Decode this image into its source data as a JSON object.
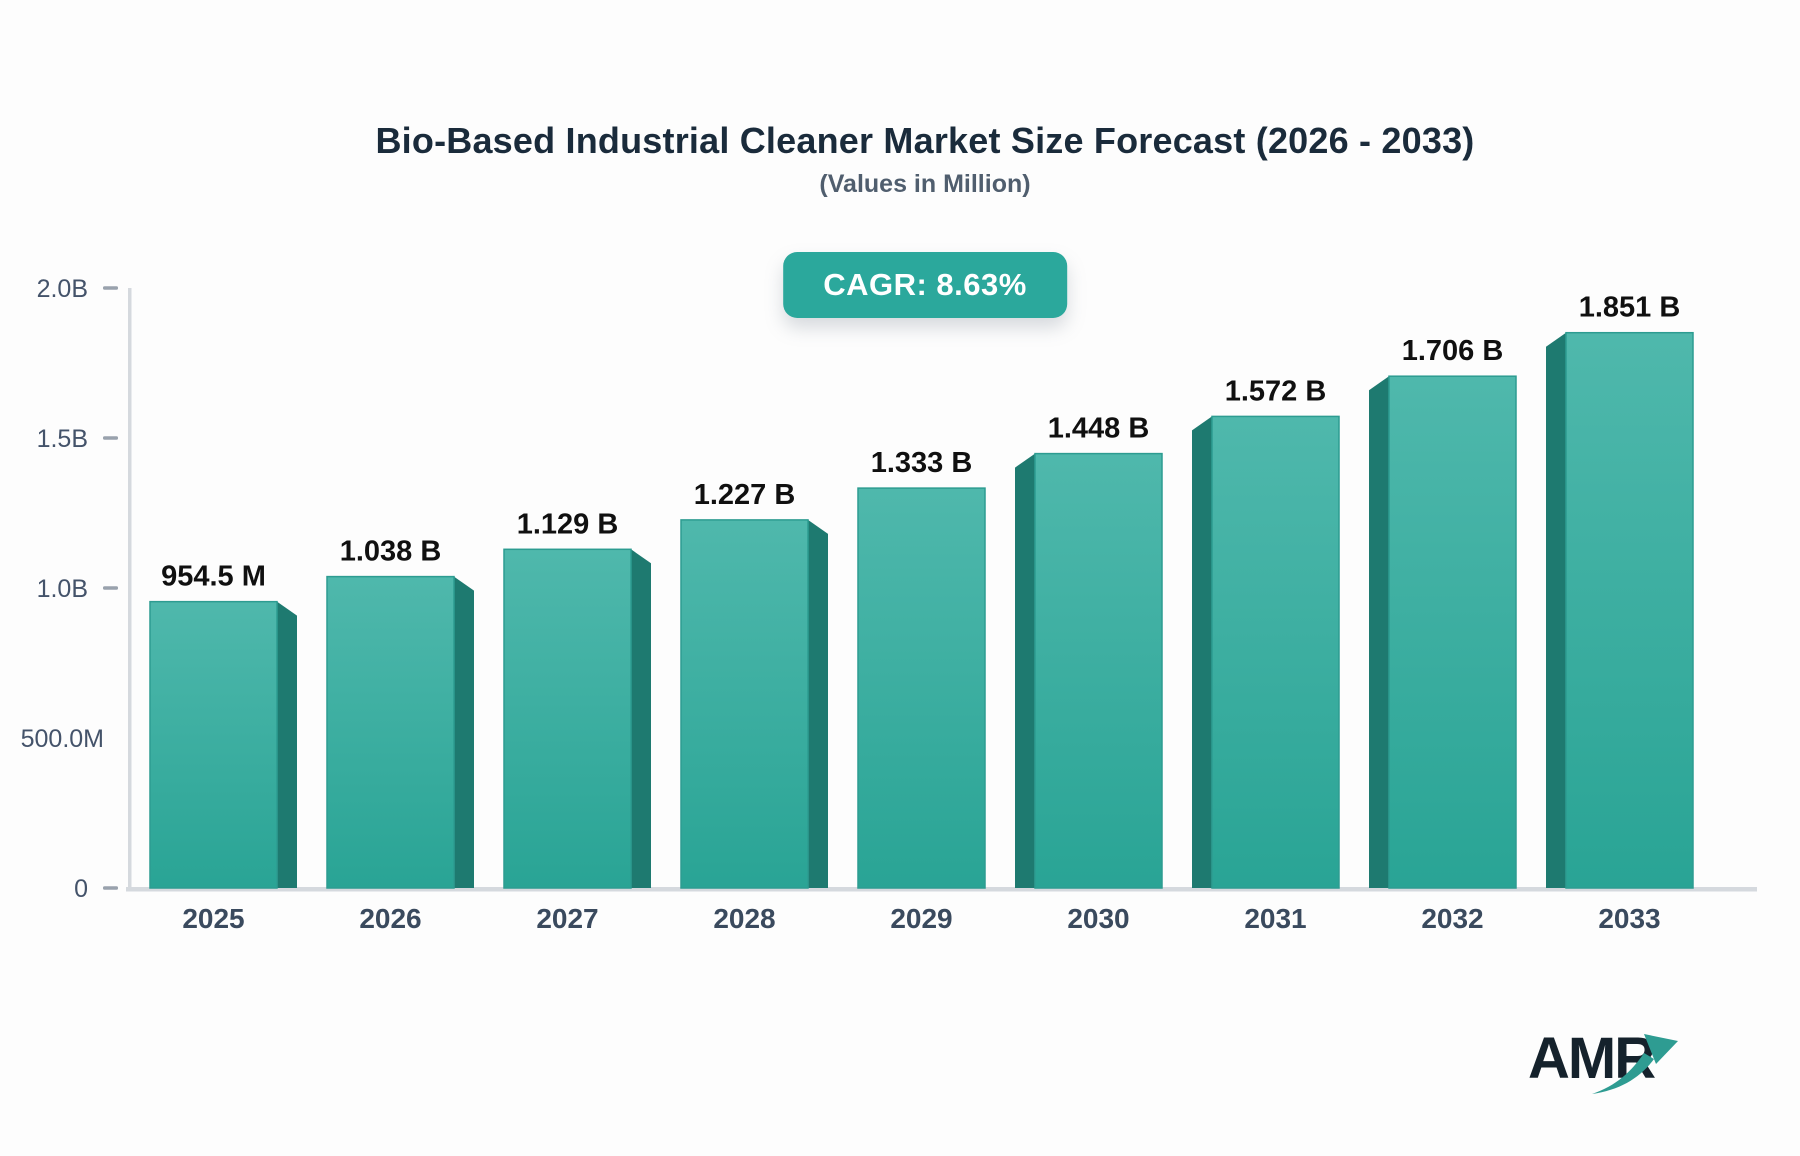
{
  "page": {
    "background": "#FDFDFD"
  },
  "chart_data": {
    "type": "bar",
    "title": "Bio-Based Industrial Cleaner Market Size Forecast (2026 - 2033)",
    "subtitle": "(Values in Million)",
    "cagr_label": "CAGR: 8.63%",
    "categories": [
      "2025",
      "2026",
      "2027",
      "2028",
      "2029",
      "2030",
      "2031",
      "2032",
      "2033"
    ],
    "values_millions": [
      954.5,
      1038,
      1129,
      1227,
      1333,
      1448,
      1572,
      1706,
      1851
    ],
    "value_labels": [
      "954.5 M",
      "1.038 B",
      "1.129 B",
      "1.227 B",
      "1.333 B",
      "1.448 B",
      "1.572 B",
      "1.706 B",
      "1.851 B"
    ],
    "xlabel": "",
    "ylabel": "",
    "ylim": [
      0,
      2000
    ],
    "y_ticks": [
      {
        "label": "2.0B",
        "value": 2000,
        "dash": true
      },
      {
        "label": "1.5B",
        "value": 1500,
        "dash": true
      },
      {
        "label": "1.0B",
        "value": 1000,
        "dash": true
      },
      {
        "label": "500.0M",
        "value": 500,
        "dash": false
      },
      {
        "label": "0",
        "value": 0,
        "dash": true
      }
    ],
    "grid": false,
    "legend": null,
    "colors": {
      "bar_top": "#4FB8AC",
      "bar_bottom": "#29A495",
      "bar_stroke": "#2D9C91",
      "bar_side": "#1E7A70",
      "badge_bg": "#2BA89C",
      "badge_text": "#FFFFFF",
      "axis_line": "#D5D9DE",
      "tick_mark": "#99A2AD",
      "tick_label": "#44536A",
      "category_label": "#3A4A5E",
      "value_label": "#101010",
      "title": "#1A2B3B",
      "subtitle": "#505E6E"
    }
  },
  "branding": {
    "logo_text": "AMR",
    "logo_color": "#15222C",
    "arrow_color": "#2E9C92"
  }
}
